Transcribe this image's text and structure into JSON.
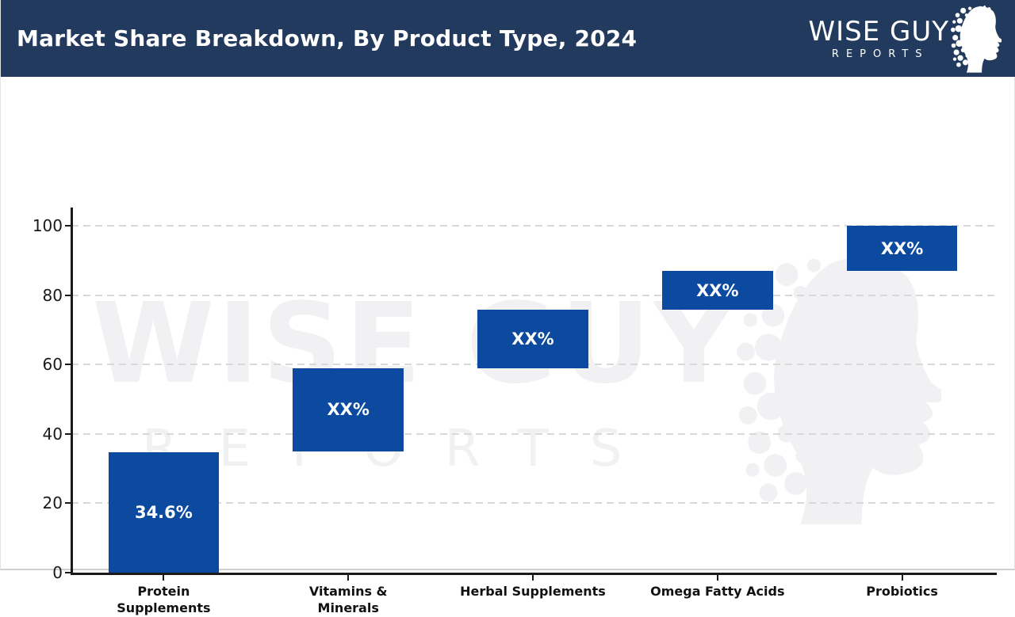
{
  "header": {
    "title": "Market Share Breakdown, By Product Type, 2024",
    "logo": {
      "line1": "WISE GUY",
      "line2": "REPORTS"
    }
  },
  "watermark": {
    "line1": "WISE GUY",
    "line2": "REPORTS"
  },
  "chart_data": {
    "type": "bar",
    "subtype": "floating-waterfall-segments",
    "title": "Market Share Breakdown, By Product Type, 2024",
    "categories": [
      "Protein Supplements",
      "Vitamins & Minerals",
      "Herbal Supplements",
      "Omega Fatty Acids",
      "Probiotics"
    ],
    "category_label_lines": [
      [
        "Protein",
        "Supplements"
      ],
      [
        "Vitamins &",
        "Minerals"
      ],
      [
        "Herbal Supplements"
      ],
      [
        "Omega Fatty Acids"
      ],
      [
        "Probiotics"
      ]
    ],
    "segments": [
      {
        "category": "Protein Supplements",
        "start": 0,
        "end": 34.6,
        "label": "34.6%"
      },
      {
        "category": "Vitamins & Minerals",
        "start": 35,
        "end": 59,
        "label": "XX%"
      },
      {
        "category": "Herbal Supplements",
        "start": 59,
        "end": 75.7,
        "label": "XX%"
      },
      {
        "category": "Omega Fatty Acids",
        "start": 75.7,
        "end": 86.9,
        "label": "XX%"
      },
      {
        "category": "Probiotics",
        "start": 86.9,
        "end": 100,
        "label": "XX%"
      }
    ],
    "yticks": [
      0,
      20,
      40,
      60,
      80,
      100
    ],
    "ylim": [
      0,
      105
    ],
    "xlabel": "",
    "ylabel": "",
    "grid": "horizontal-dashed",
    "legend": "none",
    "bar_color": "#0B4A9F",
    "bar_label_color": "#FFFFFF"
  },
  "colors": {
    "header_bg": "#223A5E",
    "bar": "#0B4A9F",
    "watermark": "#F1F1F3",
    "gridline": "#D9D9D9",
    "axis": "#1A1A1A"
  }
}
